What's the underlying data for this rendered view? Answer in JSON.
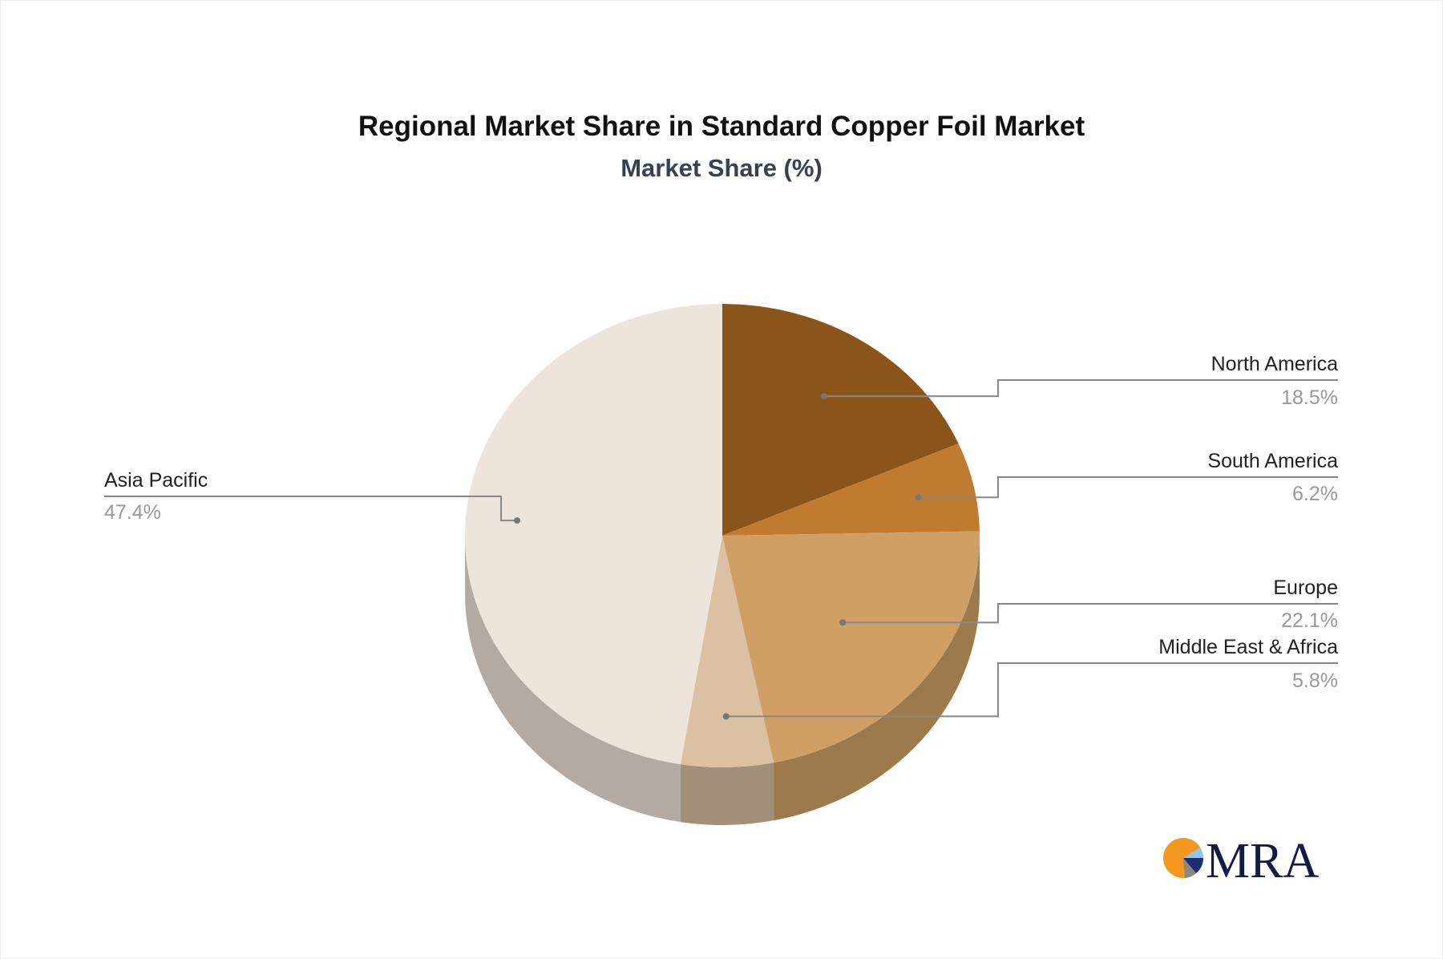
{
  "chart_data": {
    "type": "pie",
    "title": "Regional Market Share in Standard Copper Foil Market",
    "subtitle": "Market Share (%)",
    "slices": [
      {
        "label": "North America",
        "value": 18.5,
        "display": "18.5%",
        "color": "#8B5519",
        "side": "#6E4414"
      },
      {
        "label": "South America",
        "value": 6.2,
        "display": "6.2%",
        "color": "#C07B30",
        "side": "#9A6227"
      },
      {
        "label": "Europe",
        "value": 22.1,
        "display": "22.1%",
        "color": "#D09F66",
        "side": "#9C7A4C"
      },
      {
        "label": "Middle East & Africa",
        "value": 5.8,
        "display": "5.8%",
        "color": "#DBC1A2",
        "side": "#A39079"
      },
      {
        "label": "Asia Pacific",
        "value": 47.4,
        "display": "47.4%",
        "color": "#EDE4DB",
        "side": "#B3ABA3"
      }
    ],
    "style": "3d-pie"
  },
  "logo": {
    "text": "MRA"
  }
}
